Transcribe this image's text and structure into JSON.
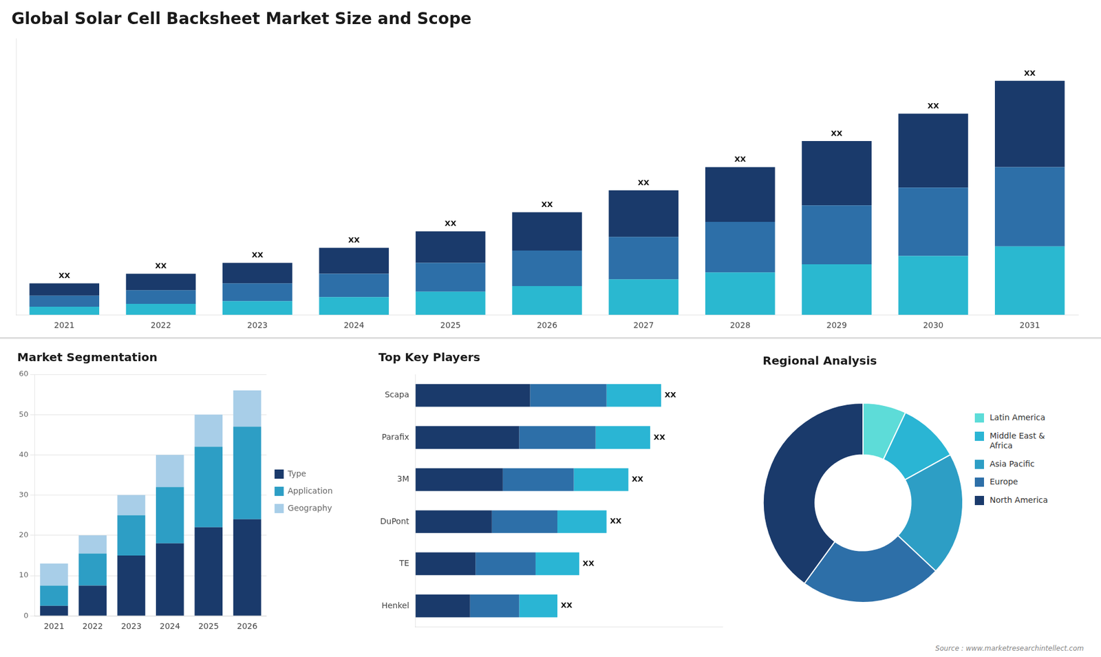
{
  "chart_data": [
    {
      "type": "bar",
      "title": "Global Solar Cell Backsheet Market Size and Scope",
      "categories": [
        "2021",
        "2022",
        "2023",
        "2024",
        "2025",
        "2026",
        "2027",
        "2028",
        "2029",
        "2030",
        "2031"
      ],
      "series": [
        {
          "color": "#2ab8d0",
          "values": [
            0.6,
            0.8,
            1.0,
            1.3,
            1.7,
            2.1,
            2.6,
            3.1,
            3.7,
            4.3,
            5.0
          ]
        },
        {
          "color": "#2d6fa8",
          "values": [
            0.8,
            1.0,
            1.3,
            1.7,
            2.1,
            2.6,
            3.1,
            3.7,
            4.3,
            5.0,
            5.8
          ]
        },
        {
          "color": "#1a3a6b",
          "values": [
            0.9,
            1.2,
            1.5,
            1.9,
            2.3,
            2.8,
            3.4,
            4.0,
            4.7,
            5.4,
            6.3
          ]
        }
      ],
      "stacked": true,
      "ylim": [
        0,
        20.178
      ],
      "tick_labels": "x",
      "grid": false,
      "annotations": [
        "XX",
        "XX",
        "XX",
        "XX",
        "XX",
        "XX",
        "XX",
        "XX",
        "XX",
        "XX",
        "XX"
      ]
    },
    {
      "type": "bar",
      "title": "Market Segmentation",
      "categories": [
        "2021",
        "2022",
        "2023",
        "2024",
        "2025",
        "2026"
      ],
      "series": [
        {
          "name": "Type",
          "color": "#1a3a6b",
          "values": [
            2.5,
            7.5,
            15.0,
            18.0,
            22.0,
            24.0
          ]
        },
        {
          "name": "Application",
          "color": "#2d9ec5",
          "values": [
            5.0,
            8.0,
            10.0,
            14.0,
            20.0,
            23.0
          ]
        },
        {
          "name": "Geography",
          "color": "#a8cee8",
          "values": [
            5.5,
            4.5,
            5.0,
            8.0,
            8.0,
            9.0
          ]
        }
      ],
      "stacked": true,
      "ylim": [
        0,
        60
      ],
      "yticks": [
        0,
        10,
        20,
        30,
        40,
        50,
        60
      ],
      "grid": true,
      "legend": "right"
    },
    {
      "type": "bar",
      "orientation": "horizontal",
      "title": "Top Key Players",
      "categories": [
        "Scapa",
        "Parafix",
        "3M",
        "DuPont",
        "TE",
        "Henkel"
      ],
      "series": [
        {
          "color": "#1a3a6b",
          "values": [
            0.42,
            0.38,
            0.32,
            0.28,
            0.22,
            0.2
          ]
        },
        {
          "color": "#2d6fa8",
          "values": [
            0.28,
            0.28,
            0.26,
            0.24,
            0.22,
            0.18
          ]
        },
        {
          "color": "#2ab5d4",
          "values": [
            0.2,
            0.2,
            0.2,
            0.18,
            0.16,
            0.14
          ]
        }
      ],
      "stacked": true,
      "xlim": [
        0,
        1.125
      ],
      "tick_labels": "y",
      "grid": false,
      "annotations": [
        "XX",
        "XX",
        "XX",
        "XX",
        "XX",
        "XX"
      ]
    },
    {
      "type": "doughnut",
      "title": "Regional Analysis",
      "categories": [
        "Latin America",
        "Middle East &\nAfrica",
        "Asia Pacific",
        "Europe",
        "North America"
      ],
      "values": [
        7,
        10,
        20,
        23,
        40
      ],
      "colors": [
        "#5ddcd8",
        "#2ab5d4",
        "#2d9ec5",
        "#2d6fa8",
        "#1a3a6b"
      ],
      "legend": "right",
      "annotations": [
        "Source : www.marketresearchintellect.com"
      ]
    }
  ]
}
